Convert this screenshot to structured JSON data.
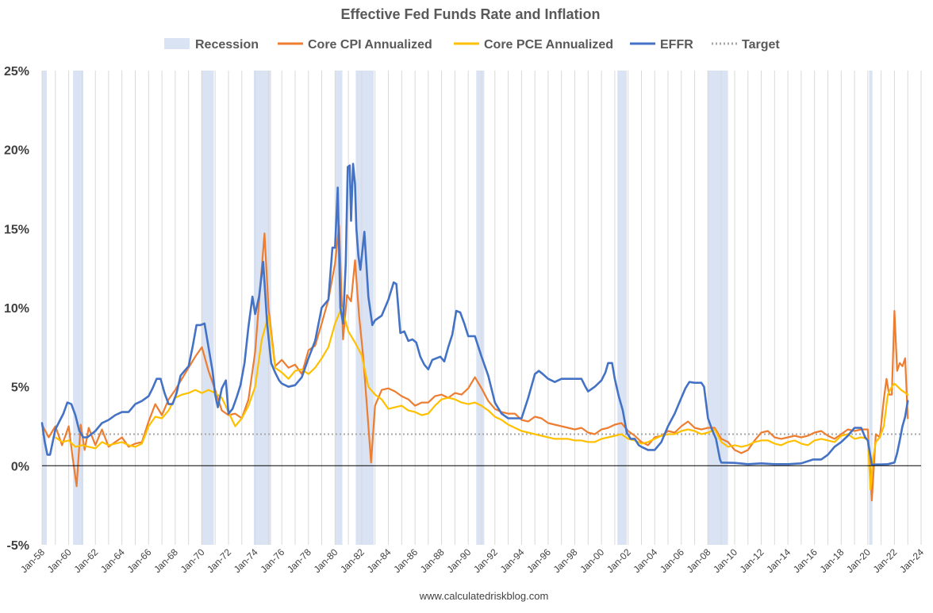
{
  "chart_data": {
    "type": "line",
    "title": "Effective Fed Funds Rate and Inflation",
    "source_text": "www.calculatedriskblog.com",
    "xlabel": "",
    "ylabel": "",
    "x_start": "Jan-58",
    "x_end": "Jan-24",
    "xlim": [
      1958.0,
      2024.0
    ],
    "ylim": [
      -5,
      25
    ],
    "y_ticks": [
      -5,
      0,
      5,
      10,
      15,
      20,
      25
    ],
    "y_tick_labels": [
      "-5%",
      "0%",
      "5%",
      "10%",
      "15%",
      "20%",
      "25%"
    ],
    "x_tick_labels": [
      "Jan-58",
      "Jan-60",
      "Jan-62",
      "Jan-64",
      "Jan-66",
      "Jan-68",
      "Jan-70",
      "Jan-72",
      "Jan-74",
      "Jan-76",
      "Jan-78",
      "Jan-80",
      "Jan-82",
      "Jan-84",
      "Jan-86",
      "Jan-88",
      "Jan-90",
      "Jan-92",
      "Jan-94",
      "Jan-96",
      "Jan-98",
      "Jan-00",
      "Jan-02",
      "Jan-04",
      "Jan-06",
      "Jan-08",
      "Jan-10",
      "Jan-12",
      "Jan-14",
      "Jan-16",
      "Jan-18",
      "Jan-20",
      "Jan-22",
      "Jan-24"
    ],
    "grid": "vertical",
    "legend_position": "top",
    "legend": [
      {
        "label": "Recession",
        "kind": "band",
        "color": "#dae3f3"
      },
      {
        "label": "Core CPI Annualized",
        "kind": "line",
        "color": "#ed7d31"
      },
      {
        "label": "Core PCE Annualized",
        "kind": "line",
        "color": "#ffc000"
      },
      {
        "label": "EFFR",
        "kind": "line",
        "color": "#4472c4"
      },
      {
        "label": "Target",
        "kind": "dotted",
        "color": "#a6a6a6"
      }
    ],
    "recessions": [
      [
        1958.0,
        1958.35
      ],
      [
        1960.33,
        1961.1
      ],
      [
        1969.95,
        1970.9
      ],
      [
        1973.9,
        1975.2
      ],
      [
        1980.0,
        1980.55
      ],
      [
        1981.55,
        1982.9
      ],
      [
        1990.6,
        1991.2
      ],
      [
        2001.2,
        2001.9
      ],
      [
        2007.95,
        2009.5
      ],
      [
        2020.1,
        2020.35
      ]
    ],
    "target": 2,
    "series": [
      {
        "name": "EFFR",
        "color": "#4472c4",
        "x": [
          1958.0,
          1958.2,
          1958.4,
          1958.6,
          1958.8,
          1959.0,
          1959.3,
          1959.6,
          1959.9,
          1960.2,
          1960.5,
          1960.8,
          1961.1,
          1961.4,
          1961.7,
          1962.0,
          1962.5,
          1963.0,
          1963.5,
          1964.0,
          1964.5,
          1965.0,
          1965.5,
          1966.0,
          1966.3,
          1966.6,
          1966.9,
          1967.2,
          1967.5,
          1967.8,
          1968.1,
          1968.4,
          1968.7,
          1969.0,
          1969.3,
          1969.6,
          1969.9,
          1970.2,
          1970.5,
          1970.8,
          1971.0,
          1971.2,
          1971.5,
          1971.8,
          1972.0,
          1972.3,
          1972.6,
          1972.9,
          1973.2,
          1973.5,
          1973.8,
          1974.0,
          1974.3,
          1974.6,
          1974.9,
          1975.2,
          1975.5,
          1975.8,
          1976.0,
          1976.5,
          1977.0,
          1977.5,
          1978.0,
          1978.5,
          1979.0,
          1979.5,
          1979.8,
          1980.0,
          1980.2,
          1980.4,
          1980.6,
          1980.8,
          1980.95,
          1981.1,
          1981.2,
          1981.35,
          1981.5,
          1981.6,
          1981.75,
          1981.9,
          1982.0,
          1982.2,
          1982.5,
          1982.8,
          1983.0,
          1983.5,
          1984.0,
          1984.4,
          1984.6,
          1984.9,
          1985.2,
          1985.5,
          1985.8,
          1986.1,
          1986.4,
          1986.7,
          1987.0,
          1987.3,
          1987.6,
          1987.9,
          1988.2,
          1988.5,
          1988.8,
          1989.1,
          1989.4,
          1989.7,
          1990.0,
          1990.5,
          1991.0,
          1991.5,
          1992.0,
          1992.5,
          1993.0,
          1993.5,
          1994.0,
          1994.5,
          1995.0,
          1995.3,
          1995.6,
          1996.0,
          1996.5,
          1997.0,
          1997.5,
          1998.0,
          1998.5,
          1998.8,
          1999.0,
          1999.5,
          2000.0,
          2000.3,
          2000.5,
          2000.8,
          2001.0,
          2001.3,
          2001.6,
          2001.9,
          2002.2,
          2002.5,
          2002.8,
          2003.0,
          2003.5,
          2004.0,
          2004.5,
          2005.0,
          2005.5,
          2006.0,
          2006.3,
          2006.6,
          2007.0,
          2007.5,
          2007.7,
          2008.0,
          2008.3,
          2008.6,
          2008.9,
          2009.0,
          2010.0,
          2011.0,
          2012.0,
          2013.0,
          2014.0,
          2015.0,
          2015.9,
          2016.5,
          2017.0,
          2017.5,
          2018.0,
          2018.5,
          2019.0,
          2019.5,
          2019.8,
          2020.0,
          2020.2,
          2020.3,
          2020.6,
          2021.0,
          2021.5,
          2022.0,
          2022.2,
          2022.4,
          2022.6,
          2022.8,
          2023.0
        ],
        "values": [
          2.7,
          1.5,
          0.7,
          0.7,
          1.5,
          2.3,
          2.8,
          3.3,
          4.0,
          3.9,
          3.2,
          2.2,
          1.8,
          1.8,
          2.0,
          2.2,
          2.7,
          2.9,
          3.2,
          3.4,
          3.4,
          3.9,
          4.1,
          4.4,
          4.9,
          5.5,
          5.5,
          4.6,
          3.9,
          3.9,
          4.6,
          5.7,
          6.0,
          6.3,
          7.5,
          8.9,
          8.9,
          9.0,
          7.5,
          6.0,
          4.5,
          3.7,
          4.9,
          5.4,
          3.3,
          3.6,
          4.3,
          5.1,
          6.5,
          8.8,
          10.7,
          9.6,
          10.7,
          12.9,
          9.0,
          6.5,
          5.9,
          5.4,
          5.2,
          5.0,
          5.1,
          5.6,
          6.8,
          7.9,
          10.0,
          10.5,
          13.8,
          13.8,
          17.6,
          10.0,
          9.0,
          12.8,
          18.9,
          19.0,
          15.5,
          19.1,
          17.8,
          15.0,
          13.3,
          12.4,
          13.2,
          14.8,
          10.7,
          8.9,
          9.2,
          9.5,
          10.5,
          11.6,
          11.5,
          8.4,
          8.5,
          7.9,
          8.0,
          7.8,
          6.9,
          6.4,
          6.1,
          6.7,
          6.8,
          6.9,
          6.6,
          7.5,
          8.3,
          9.8,
          9.7,
          9.0,
          8.2,
          8.2,
          6.9,
          5.7,
          4.0,
          3.3,
          3.0,
          3.0,
          3.0,
          4.3,
          5.8,
          6.0,
          5.8,
          5.5,
          5.3,
          5.5,
          5.5,
          5.5,
          5.5,
          5.0,
          4.7,
          5.0,
          5.4,
          5.9,
          6.5,
          6.5,
          5.5,
          4.4,
          3.5,
          2.1,
          1.7,
          1.7,
          1.3,
          1.2,
          1.0,
          1.0,
          1.5,
          2.5,
          3.3,
          4.3,
          4.9,
          5.3,
          5.25,
          5.25,
          5.0,
          3.0,
          2.3,
          1.7,
          0.4,
          0.2,
          0.18,
          0.1,
          0.15,
          0.1,
          0.1,
          0.15,
          0.4,
          0.4,
          0.7,
          1.2,
          1.5,
          1.9,
          2.4,
          2.4,
          1.8,
          1.6,
          0.6,
          0.06,
          0.08,
          0.08,
          0.1,
          0.2,
          0.8,
          1.6,
          2.5,
          3.1,
          4.1
        ]
      },
      {
        "name": "Core CPI Annualized",
        "color": "#ed7d31",
        "x": [
          1958.0,
          1958.5,
          1959.0,
          1959.5,
          1960.0,
          1960.3,
          1960.6,
          1960.9,
          1961.2,
          1961.5,
          1962.0,
          1962.5,
          1963.0,
          1963.5,
          1964.0,
          1964.5,
          1965.0,
          1965.5,
          1966.0,
          1966.5,
          1967.0,
          1967.5,
          1968.0,
          1968.5,
          1969.0,
          1969.5,
          1970.0,
          1970.5,
          1971.0,
          1971.5,
          1972.0,
          1972.5,
          1973.0,
          1973.5,
          1974.0,
          1974.4,
          1974.7,
          1975.0,
          1975.5,
          1976.0,
          1976.5,
          1977.0,
          1977.5,
          1978.0,
          1978.5,
          1979.0,
          1979.5,
          1980.0,
          1980.3,
          1980.6,
          1980.9,
          1981.2,
          1981.5,
          1981.8,
          1982.1,
          1982.4,
          1982.7,
          1983.0,
          1983.5,
          1984.0,
          1984.5,
          1985.0,
          1985.5,
          1986.0,
          1986.5,
          1987.0,
          1987.5,
          1988.0,
          1988.5,
          1989.0,
          1989.5,
          1990.0,
          1990.5,
          1991.0,
          1991.5,
          1992.0,
          1992.5,
          1993.0,
          1993.5,
          1994.0,
          1994.5,
          1995.0,
          1995.5,
          1996.0,
          1996.5,
          1997.0,
          1997.5,
          1998.0,
          1998.5,
          1999.0,
          1999.5,
          2000.0,
          2000.5,
          2001.0,
          2001.5,
          2002.0,
          2002.5,
          2003.0,
          2003.5,
          2004.0,
          2004.5,
          2005.0,
          2005.5,
          2006.0,
          2006.5,
          2007.0,
          2007.5,
          2008.0,
          2008.5,
          2009.0,
          2009.5,
          2010.0,
          2010.5,
          2011.0,
          2011.5,
          2012.0,
          2012.5,
          2013.0,
          2013.5,
          2014.0,
          2014.5,
          2015.0,
          2015.5,
          2016.0,
          2016.5,
          2017.0,
          2017.5,
          2018.0,
          2018.5,
          2019.0,
          2019.5,
          2020.0,
          2020.3,
          2020.6,
          2020.9,
          2021.2,
          2021.4,
          2021.6,
          2021.8,
          2022.0,
          2022.2,
          2022.4,
          2022.6,
          2022.8,
          2023.0
        ],
        "values": [
          2.6,
          1.8,
          2.5,
          1.3,
          2.5,
          0.5,
          -1.3,
          2.6,
          1.0,
          2.4,
          1.3,
          2.3,
          1.2,
          1.5,
          1.8,
          1.2,
          1.4,
          1.5,
          2.8,
          3.9,
          3.2,
          4.2,
          4.8,
          5.5,
          6.2,
          6.9,
          7.5,
          6.0,
          4.8,
          3.5,
          3.2,
          3.3,
          3.0,
          4.2,
          7.2,
          11.5,
          14.7,
          10.0,
          6.3,
          6.7,
          6.2,
          6.4,
          5.8,
          7.3,
          7.6,
          9.0,
          10.5,
          12.8,
          15.2,
          8.0,
          10.8,
          10.4,
          13.0,
          9.5,
          7.0,
          3.7,
          0.2,
          3.8,
          4.8,
          4.9,
          4.7,
          4.4,
          4.2,
          3.8,
          4.0,
          4.0,
          4.4,
          4.5,
          4.3,
          4.6,
          4.5,
          4.9,
          5.6,
          4.9,
          4.1,
          3.6,
          3.4,
          3.3,
          3.3,
          2.9,
          2.8,
          3.1,
          3.0,
          2.7,
          2.6,
          2.5,
          2.4,
          2.3,
          2.4,
          2.1,
          2.0,
          2.3,
          2.4,
          2.6,
          2.7,
          2.2,
          1.9,
          1.5,
          1.3,
          1.8,
          1.9,
          2.2,
          2.1,
          2.5,
          2.8,
          2.4,
          2.3,
          2.4,
          2.4,
          1.7,
          1.5,
          1.0,
          0.8,
          1.0,
          1.6,
          2.1,
          2.2,
          1.8,
          1.7,
          1.8,
          1.9,
          1.8,
          1.9,
          2.1,
          2.2,
          1.9,
          1.7,
          2.0,
          2.3,
          2.2,
          2.3,
          2.3,
          -2.2,
          2.0,
          1.8,
          4.2,
          5.5,
          4.5,
          4.5,
          9.8,
          6.0,
          6.5,
          6.3,
          6.8,
          3.0
        ]
      },
      {
        "name": "Core PCE Annualized",
        "color": "#ffc000",
        "x": [
          1959.0,
          1959.5,
          1960.0,
          1960.5,
          1961.0,
          1961.5,
          1962.0,
          1962.5,
          1963.0,
          1963.5,
          1964.0,
          1964.5,
          1965.0,
          1965.5,
          1966.0,
          1966.5,
          1967.0,
          1967.5,
          1968.0,
          1968.5,
          1969.0,
          1969.5,
          1970.0,
          1970.5,
          1971.0,
          1971.5,
          1972.0,
          1972.5,
          1973.0,
          1973.5,
          1974.0,
          1974.5,
          1975.0,
          1975.5,
          1976.0,
          1976.5,
          1977.0,
          1977.5,
          1978.0,
          1978.5,
          1979.0,
          1979.5,
          1980.0,
          1980.5,
          1981.0,
          1981.5,
          1982.0,
          1982.5,
          1983.0,
          1983.5,
          1984.0,
          1984.5,
          1985.0,
          1985.5,
          1986.0,
          1986.5,
          1987.0,
          1987.5,
          1988.0,
          1988.5,
          1989.0,
          1989.5,
          1990.0,
          1990.5,
          1991.0,
          1991.5,
          1992.0,
          1992.5,
          1993.0,
          1993.5,
          1994.0,
          1994.5,
          1995.0,
          1995.5,
          1996.0,
          1996.5,
          1997.0,
          1997.5,
          1998.0,
          1998.5,
          1999.0,
          1999.5,
          2000.0,
          2000.5,
          2001.0,
          2001.5,
          2002.0,
          2002.5,
          2003.0,
          2003.5,
          2004.0,
          2004.5,
          2005.0,
          2005.5,
          2006.0,
          2006.5,
          2007.0,
          2007.5,
          2008.0,
          2008.5,
          2009.0,
          2009.5,
          2010.0,
          2010.5,
          2011.0,
          2011.5,
          2012.0,
          2012.5,
          2013.0,
          2013.5,
          2014.0,
          2014.5,
          2015.0,
          2015.5,
          2016.0,
          2016.5,
          2017.0,
          2017.5,
          2018.0,
          2018.5,
          2019.0,
          2019.5,
          2020.0,
          2020.2,
          2020.4,
          2020.6,
          2020.9,
          2021.2,
          2021.5,
          2021.8,
          2022.0,
          2022.5,
          2023.0
        ],
        "values": [
          1.8,
          1.5,
          1.6,
          1.2,
          1.3,
          1.2,
          1.1,
          1.5,
          1.3,
          1.4,
          1.5,
          1.3,
          1.2,
          1.4,
          2.5,
          3.1,
          3.0,
          3.5,
          4.3,
          4.5,
          4.6,
          4.8,
          4.6,
          4.8,
          4.6,
          4.3,
          3.4,
          2.5,
          3.0,
          3.8,
          5.0,
          8.0,
          9.5,
          6.2,
          5.9,
          5.5,
          6.0,
          6.1,
          5.8,
          6.2,
          6.8,
          7.5,
          9.0,
          10.0,
          8.5,
          7.8,
          7.0,
          5.0,
          4.5,
          4.2,
          3.6,
          3.7,
          3.8,
          3.5,
          3.4,
          3.2,
          3.3,
          3.8,
          4.2,
          4.3,
          4.2,
          4.0,
          3.9,
          4.0,
          3.8,
          3.5,
          3.1,
          2.9,
          2.6,
          2.4,
          2.2,
          2.1,
          2.0,
          1.9,
          1.8,
          1.7,
          1.7,
          1.7,
          1.6,
          1.6,
          1.5,
          1.5,
          1.7,
          1.8,
          1.9,
          2.0,
          1.7,
          1.6,
          1.4,
          1.5,
          1.7,
          1.9,
          2.0,
          2.0,
          2.2,
          2.3,
          2.2,
          2.0,
          2.1,
          2.3,
          1.5,
          1.2,
          1.3,
          1.2,
          1.3,
          1.5,
          1.6,
          1.6,
          1.4,
          1.3,
          1.5,
          1.6,
          1.4,
          1.3,
          1.6,
          1.7,
          1.6,
          1.5,
          1.9,
          2.0,
          1.7,
          1.8,
          1.7,
          -1.5,
          0.5,
          1.5,
          1.8,
          2.5,
          4.5,
          5.0,
          5.2,
          4.8,
          4.5
        ]
      }
    ]
  }
}
